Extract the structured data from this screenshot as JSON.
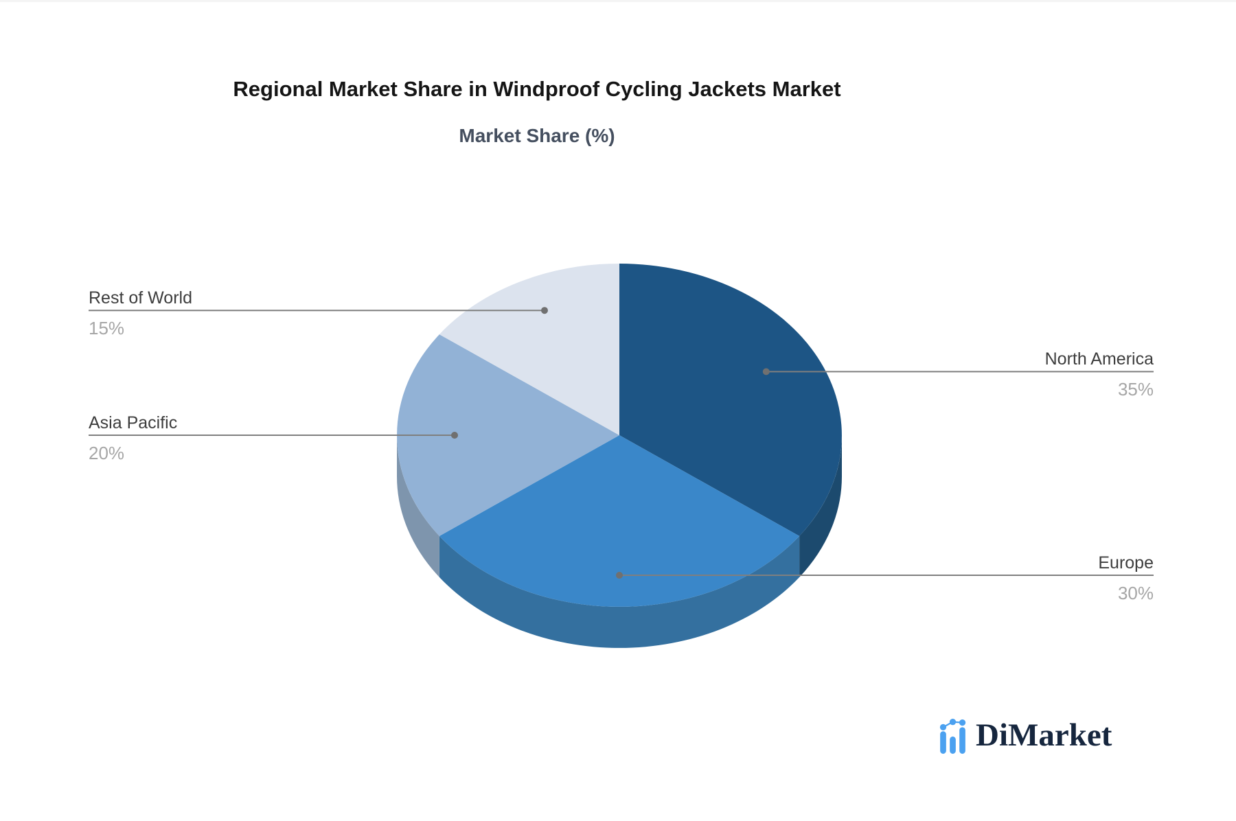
{
  "page": {
    "background": "#ffffff"
  },
  "header": {
    "title": "Regional Market Share in Windproof Cycling Jackets Market",
    "subtitle": "Market Share (%)"
  },
  "logo": {
    "text": "DiMarket",
    "icon": "bar-chart-logo-icon",
    "icon_color": "#4BA1F0",
    "text_color": "#16263E"
  },
  "chart_data": {
    "type": "pie",
    "style": "3d",
    "direction": "clockwise",
    "start_angle_deg": 0,
    "title": "Regional Market Share in Windproof Cycling Jackets Market",
    "subtitle": "Market Share (%)",
    "unit": "%",
    "legend_position": "none",
    "segments": [
      {
        "label": "North America",
        "value": 35,
        "percent_label": "35%",
        "color": "#1D5585",
        "side_color": "#1C4A6E",
        "label_side": "right"
      },
      {
        "label": "Europe",
        "value": 30,
        "percent_label": "30%",
        "color": "#3A87C9",
        "side_color": "#34709F",
        "label_side": "right"
      },
      {
        "label": "Asia Pacific",
        "value": 20,
        "percent_label": "20%",
        "color": "#92B2D6",
        "side_color": "#7E95AD",
        "label_side": "left"
      },
      {
        "label": "Rest of World",
        "value": 15,
        "percent_label": "15%",
        "color": "#DCE3EE",
        "side_color": "#C6CFDD",
        "label_side": "left"
      }
    ],
    "leader_line_color": "#7F7F7F",
    "leader_dot_color": "#707070",
    "label_text_color": "#3D3D3D",
    "percent_text_color": "#A6A6A6"
  }
}
